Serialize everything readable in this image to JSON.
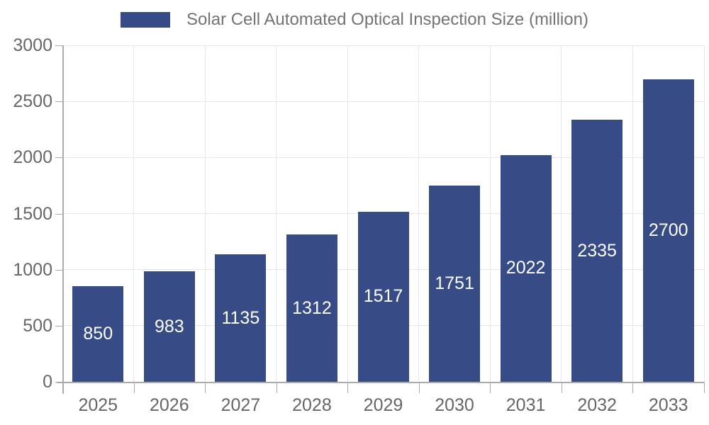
{
  "legend": {
    "label": "Solar Cell Automated Optical Inspection Size (million)"
  },
  "chart_data": {
    "type": "bar",
    "title": "Solar Cell Automated Optical Inspection Size (million)",
    "categories": [
      "2025",
      "2026",
      "2027",
      "2028",
      "2029",
      "2030",
      "2031",
      "2032",
      "2033"
    ],
    "values": [
      850,
      983,
      1135,
      1312,
      1517,
      1751,
      2022,
      2335,
      2700
    ],
    "xlabel": "",
    "ylabel": "",
    "ylim": [
      0,
      3000
    ],
    "yticks": [
      0,
      500,
      1000,
      1500,
      2000,
      2500,
      3000
    ],
    "grid": true,
    "legend_position": "top-center",
    "bar_labels_inside": true,
    "colors": {
      "bar": "#374b87",
      "bar_label": "#ffffff",
      "grid": "#e7e7e7",
      "axis": "#aaaaaa",
      "tick_label": "#666666",
      "legend_text": "#737373"
    }
  }
}
